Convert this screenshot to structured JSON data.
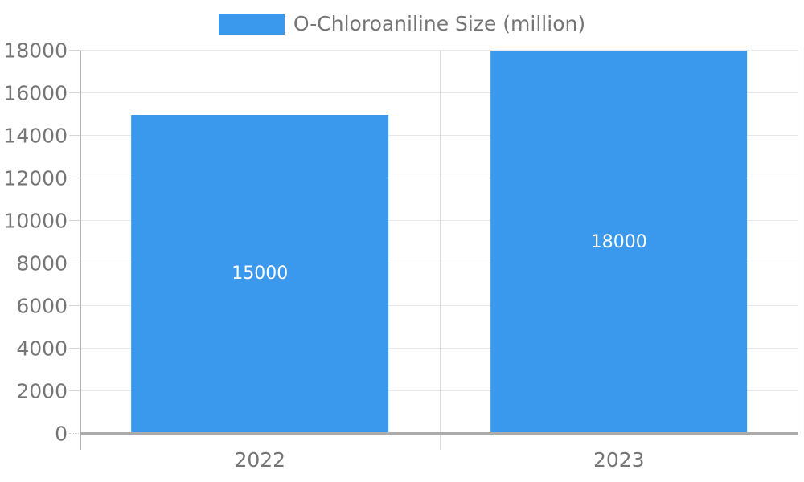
{
  "legend": {
    "label": "O-Chloroaniline Size (million)"
  },
  "chart_data": {
    "type": "bar",
    "title": "O-Chloroaniline Size (million)",
    "categories": [
      "2022",
      "2023"
    ],
    "series": [
      {
        "name": "O-Chloroaniline Size (million)",
        "values": [
          15000,
          18000
        ]
      }
    ],
    "values": [
      15000,
      18000
    ],
    "value_labels": [
      "15000",
      "18000"
    ],
    "xlabel": "",
    "ylabel": "",
    "ylim": [
      0,
      18000
    ],
    "ytick_step": 2000,
    "yticks": [
      0,
      2000,
      4000,
      6000,
      8000,
      10000,
      12000,
      14000,
      16000,
      18000
    ],
    "grid": true,
    "legend_position": "top"
  },
  "colors": {
    "bar": "#3A99EC",
    "text": "#757575",
    "value_label": "#FFFFFF",
    "axis_line": "#B3B3B3",
    "baseline": "#ABABAB",
    "gridline": "#E8E8E8",
    "divider": "#DCDCDC",
    "tick": "#D6D6D6",
    "right_border": "#E3E3E3"
  }
}
